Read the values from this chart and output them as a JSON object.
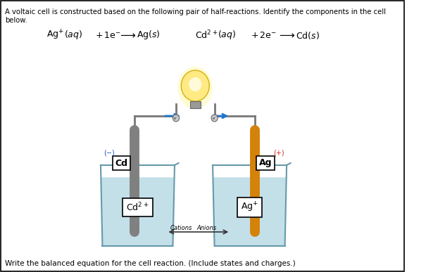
{
  "title_text": "A voltaic cell is constructed based on the following pair of half-reactions. Identify the components in the cell\nbelow.",
  "half_reaction_left": "Ag$^{+}$$(aq)$ + 1e$^{-}$   →   Ag$(s)$",
  "half_reaction_right": "Cd$^{2+}$$(aq)$ + 2e$^{-}$   →   Cd$(s)$",
  "footer_text": "Write the balanced equation for the cell reaction. (Include states and charges.)",
  "bg_color": "#ffffff",
  "border_color": "#000000",
  "arrow_color": "#2277cc",
  "electrode_left_label": "Cd",
  "electrode_right_label": "Ag",
  "solution_left_label": "Cd$^{2+}$",
  "solution_right_label": "Ag$^{+}$",
  "cations_label": "Cations",
  "anions_label": "Anions",
  "minus_label": "(−)",
  "plus_label": "(+)",
  "water_color": "#aad4e0",
  "beaker_color": "#b0c8d4",
  "electrode_left_color": "#808080",
  "electrode_right_color": "#d4820a",
  "bulb_color_outer": "#ffe066",
  "bulb_color_inner": "#fffaaa",
  "wire_color": "#888888"
}
